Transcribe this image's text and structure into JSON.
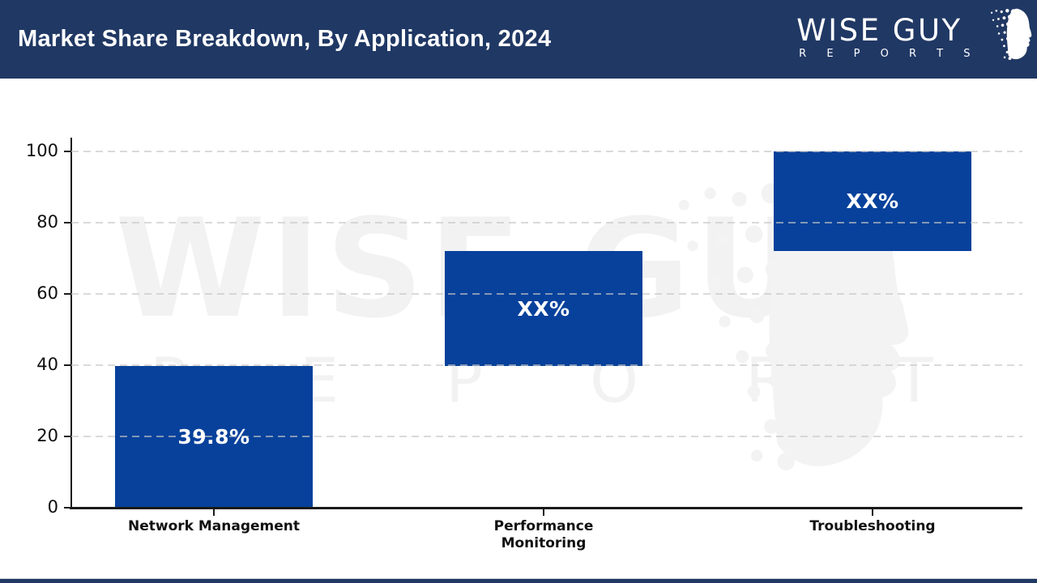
{
  "header": {
    "title": "Market Share Breakdown, By Application, 2024",
    "bg_color": "#203864",
    "logo": {
      "line1": "WISE GUY",
      "line2": "R E P O R T S"
    }
  },
  "watermark": {
    "line1": "WISE GUY",
    "line2": "R E P O R T S"
  },
  "footer": {
    "bg_color": "#203864"
  },
  "chart_data": {
    "type": "bar",
    "subtype": "floating-waterfall",
    "title": "Market Share Breakdown, By Application, 2024",
    "categories": [
      "Network Management",
      "Performance\nMonitoring",
      "Troubleshooting"
    ],
    "series": [
      {
        "name": "Market Share %",
        "segments": [
          {
            "category": "Network Management",
            "start": 0,
            "end": 39.8,
            "label": "39.8%"
          },
          {
            "category": "Performance Monitoring",
            "start": 39.8,
            "end": 72,
            "label": "XX%"
          },
          {
            "category": "Troubleshooting",
            "start": 72,
            "end": 100,
            "label": "XX%"
          }
        ]
      }
    ],
    "ylim": [
      0,
      104
    ],
    "yticks": [
      0,
      20,
      40,
      60,
      80,
      100
    ],
    "grid": true,
    "grid_style": "dashed",
    "legend": "none",
    "bar_color": "#07419b",
    "bar_label_color": "#ffffff",
    "axis_color": "#1a1a1a"
  }
}
